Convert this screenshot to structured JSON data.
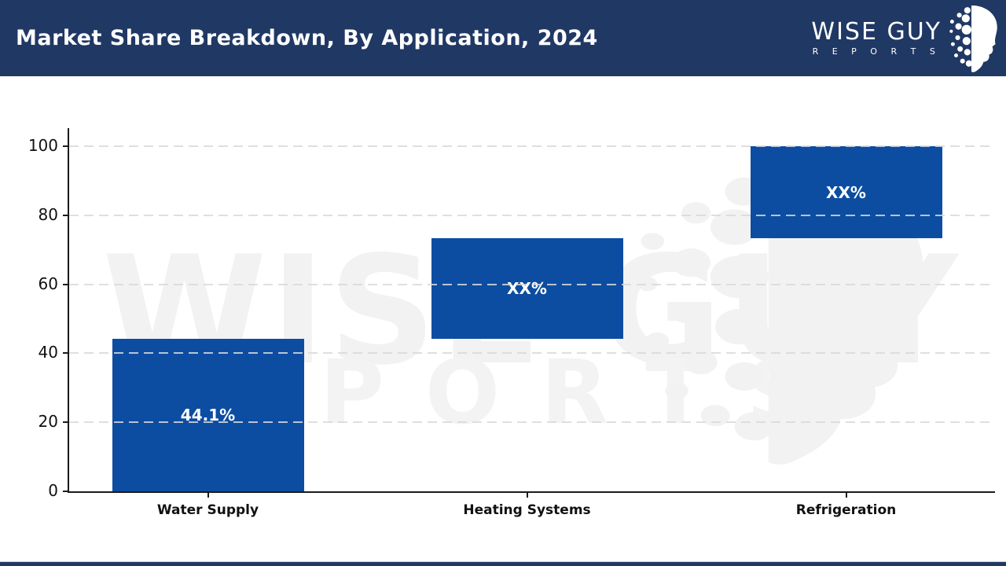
{
  "header": {
    "title": "Market Share Breakdown, By Application, 2024",
    "logo": {
      "line1": "WISE GUY",
      "line2": "R E P O R T S"
    }
  },
  "watermark": {
    "line1": "WISE GUY",
    "line2": "REPORTS"
  },
  "chart_data": {
    "type": "bar",
    "subtype": "waterfall",
    "title": "Market Share Breakdown, By Application, 2024",
    "categories": [
      "Water Supply",
      "Heating Systems",
      "Refrigeration"
    ],
    "segments": [
      {
        "category": "Water Supply",
        "start": 0,
        "end": 44.1,
        "label": "44.1%"
      },
      {
        "category": "Heating Systems",
        "start": 44.1,
        "end": 73.3,
        "label": "XX%"
      },
      {
        "category": "Refrigeration",
        "start": 73.3,
        "end": 100,
        "label": "XX%"
      }
    ],
    "yticks": [
      0,
      20,
      40,
      60,
      80,
      100
    ],
    "ylim": [
      0,
      105
    ],
    "xlabel": "",
    "ylabel": "",
    "grid": "horizontal-dashed",
    "legend": "none",
    "bar_color": "#0c4da2",
    "bar_label_color": "#ffffff"
  },
  "colors": {
    "header_bg": "#203864",
    "footer_bg": "#203864",
    "bar": "#0c4da2",
    "grid": "#d9d9d9",
    "axis": "#1a1a1a",
    "watermark": "#f2f2f2"
  }
}
